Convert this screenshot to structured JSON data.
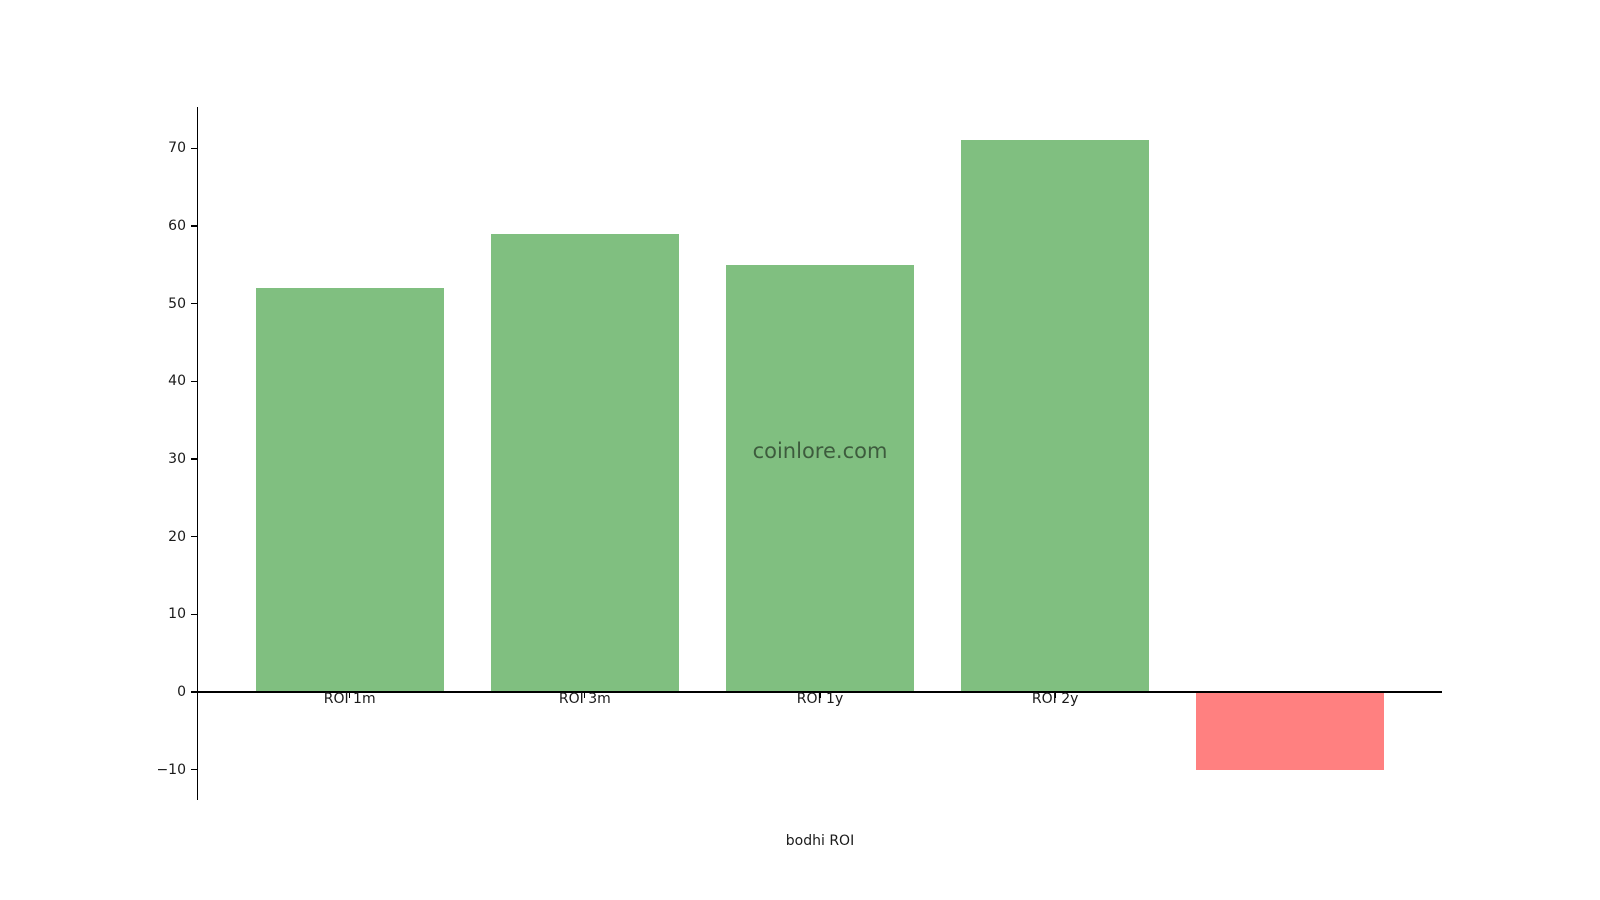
{
  "chart_data": {
    "type": "bar",
    "title": "",
    "xlabel": "bodhi ROI",
    "ylabel": "",
    "categories": [
      "ROI 1m",
      "ROI 3m",
      "ROI 1y",
      "ROI 2y",
      ""
    ],
    "values": [
      52,
      59,
      55,
      71,
      -10
    ],
    "bar_colors": [
      "#80bf80",
      "#80bf80",
      "#80bf80",
      "#80bf80",
      "#ff8080"
    ],
    "positive_color": "#80bf80",
    "negative_color": "#ff8080",
    "axis_color": "#000000",
    "text_color": "#1a1a1a",
    "watermark": "coinlore.com",
    "watermark_color": "rgba(0,0,0,0.52)",
    "yticks": [
      -10,
      0,
      10,
      20,
      30,
      40,
      50,
      60,
      70
    ],
    "ylim": [
      -13.9,
      75.3
    ],
    "xlim": [
      -0.645,
      4.645
    ],
    "bar_width_fraction": 0.8,
    "grid": false,
    "legend": null
  }
}
